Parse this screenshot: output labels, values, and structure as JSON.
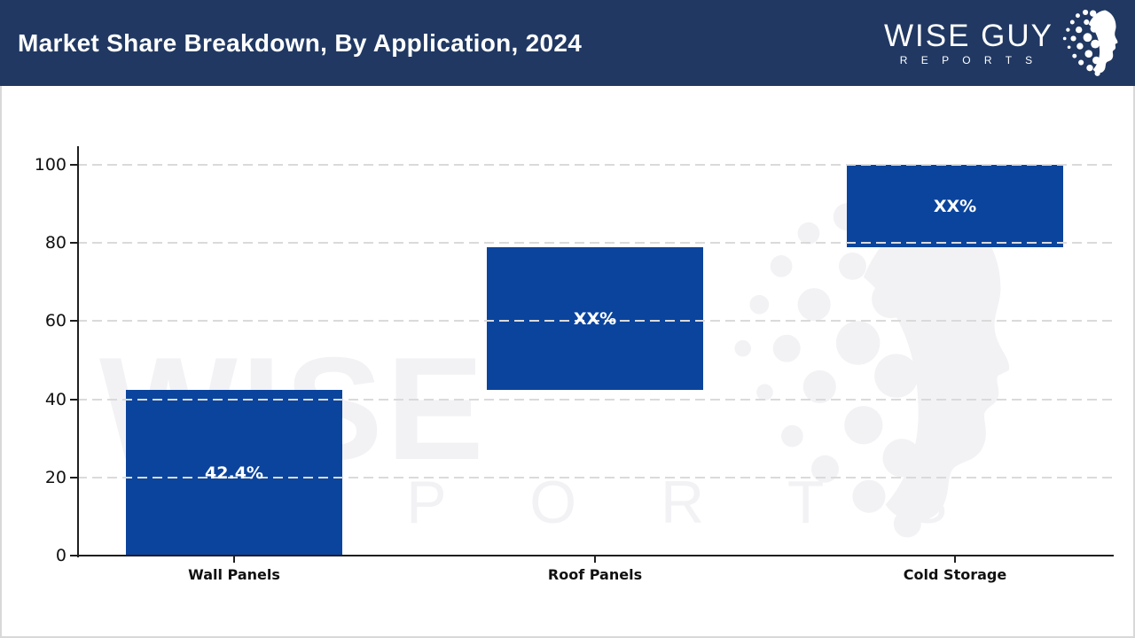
{
  "header": {
    "title": "Market Share Breakdown, By Application, 2024",
    "logo": {
      "name": "WISE GUY",
      "tagline": "R E P O R T S"
    }
  },
  "watermark": {
    "main": "WISE",
    "sub": "R E P O R T S"
  },
  "chart_data": {
    "type": "bar",
    "subtype": "waterfall",
    "title": "Market Share Breakdown, By Application, 2024",
    "categories": [
      "Wall Panels",
      "Roof Panels",
      "Cold Storage"
    ],
    "series": [
      {
        "name": "Wall Panels",
        "label": "42.4%",
        "start": 0,
        "end": 42.4,
        "value": "42.4%"
      },
      {
        "name": "Roof Panels",
        "label": "XX%",
        "start": 42.4,
        "end": 78.8,
        "value": "XX%"
      },
      {
        "name": "Cold Storage",
        "label": "XX%",
        "start": 78.8,
        "end": 100,
        "value": "XX%"
      }
    ],
    "yticks": [
      0,
      20,
      40,
      60,
      80,
      100
    ],
    "ylim": [
      0,
      105
    ],
    "xlabel": "",
    "ylabel": "",
    "grid": "horizontal-dashed",
    "legend": "none"
  },
  "colors": {
    "header_bg": "#203862",
    "bar": "#0B449C",
    "grid": "#DADADA",
    "axis": "#1F1F1F",
    "tick_text": "#111111",
    "bar_label_text": "#FFFFFF",
    "watermark": "#F2F2F5",
    "frame": "#D8D8D8"
  }
}
